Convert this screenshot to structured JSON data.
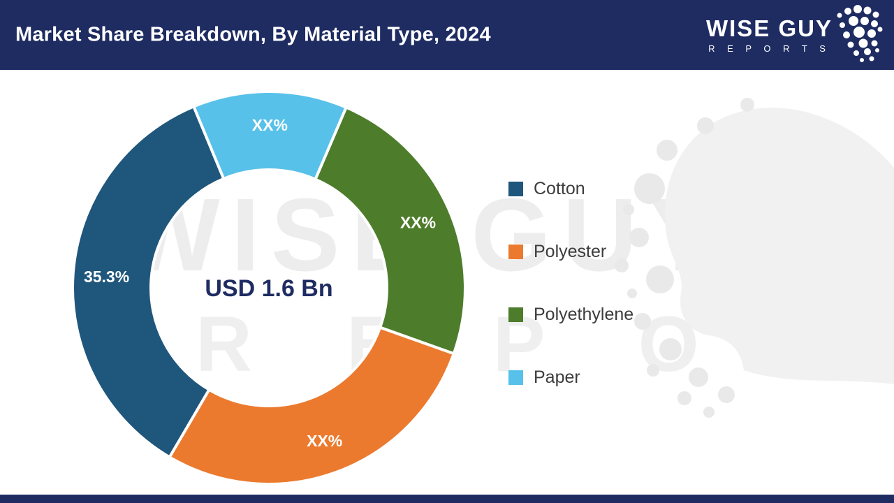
{
  "header": {
    "title": "Market Share Breakdown, By Material Type, 2024",
    "logo": {
      "line1": "WISE GUY",
      "line2": "R E P O R T S"
    }
  },
  "theme": {
    "navy": "#1e2c62",
    "text_dark": "#3c3c3c"
  },
  "watermark": {
    "line1": "WISE GUY",
    "line2": "R E P O R T S"
  },
  "chart_data": {
    "type": "pie",
    "donut": true,
    "title": "Market Share Breakdown, By Material Type, 2024",
    "center_label": "USD 1.6 Bn",
    "legend_position": "right",
    "start_angle_deg": 210.4,
    "segments": [
      {
        "label": "Cotton",
        "value": 35.3,
        "display": "35.3%",
        "color": "#1f567c",
        "estimated": false
      },
      {
        "label": "Paper",
        "value": 12.7,
        "display": "XX%",
        "color": "#57c1e9",
        "estimated": true
      },
      {
        "label": "Polyethylene",
        "value": 24.0,
        "display": "XX%",
        "color": "#4d7c2b",
        "estimated": true
      },
      {
        "label": "Polyester",
        "value": 28.0,
        "display": "XX%",
        "color": "#eb7a2f",
        "estimated": true
      }
    ]
  },
  "legend": {
    "items": [
      {
        "label": "Cotton",
        "color": "#1f567c"
      },
      {
        "label": "Polyester",
        "color": "#eb7a2f"
      },
      {
        "label": "Polyethylene",
        "color": "#4d7c2b"
      },
      {
        "label": "Paper",
        "color": "#57c1e9"
      }
    ]
  }
}
